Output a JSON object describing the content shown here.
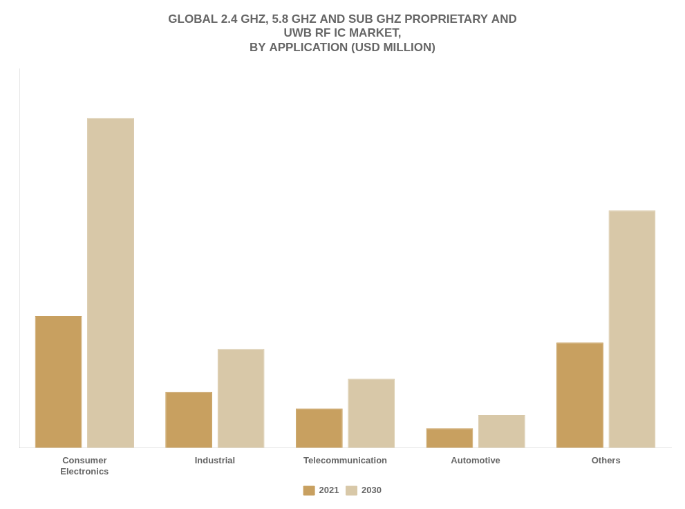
{
  "chart_data": {
    "type": "bar",
    "title": "GLOBAL 2.4 GHZ, 5.8 GHZ AND SUB GHZ PROPRIETARY AND\nUWB RF IC MARKET,\nBY APPLICATION (USD MILLION)",
    "categories": [
      "Consumer\nElectronics",
      "Industrial",
      "Telecommunication",
      "Automotive",
      "Others"
    ],
    "series": [
      {
        "name": "2021",
        "color": "#C8A060",
        "values": [
          40,
          17,
          12,
          6,
          32
        ]
      },
      {
        "name": "2030",
        "color": "#D8C8A8",
        "values": [
          100,
          30,
          21,
          10,
          72
        ]
      }
    ],
    "ylim": [
      0,
      115
    ],
    "grid": false,
    "legend": "bottom",
    "tick_labels": "x"
  }
}
